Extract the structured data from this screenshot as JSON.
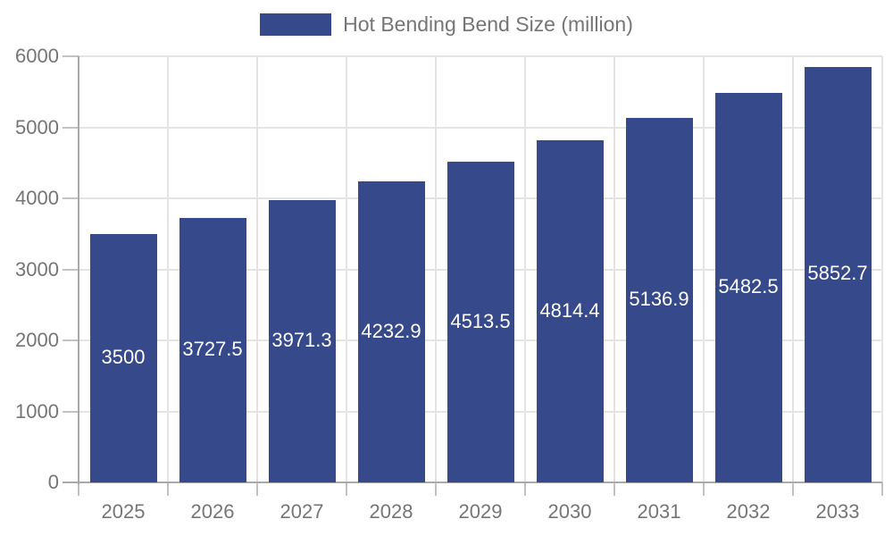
{
  "chart_data": {
    "type": "bar",
    "series_name": "Hot Bending Bend Size (million)",
    "legend": "Hot Bending Bend Size (million)",
    "legend_position": "top",
    "categories": [
      "2025",
      "2026",
      "2027",
      "2028",
      "2029",
      "2030",
      "2031",
      "2032",
      "2033"
    ],
    "values": [
      3500,
      3727.5,
      3971.3,
      4232.9,
      4513.5,
      4814.4,
      5136.9,
      5482.5,
      5852.7
    ],
    "value_labels": [
      "3500",
      "3727.5",
      "3971.3",
      "4232.9",
      "4513.5",
      "4814.4",
      "5136.9",
      "5482.5",
      "5852.7"
    ],
    "xlabel": "",
    "ylabel": "",
    "ylim": [
      0,
      6000
    ],
    "yticks": [
      0,
      1000,
      2000,
      3000,
      4000,
      5000,
      6000
    ],
    "grid": true,
    "colors": {
      "bar": "#36498b",
      "grid": "#e4e4e4",
      "axis": "#a9a9a9",
      "tick": "#c2c2c2",
      "tick_text": "#757575",
      "legend_text": "#757575",
      "value_label": "#ffffff",
      "background": "#ffffff"
    }
  }
}
